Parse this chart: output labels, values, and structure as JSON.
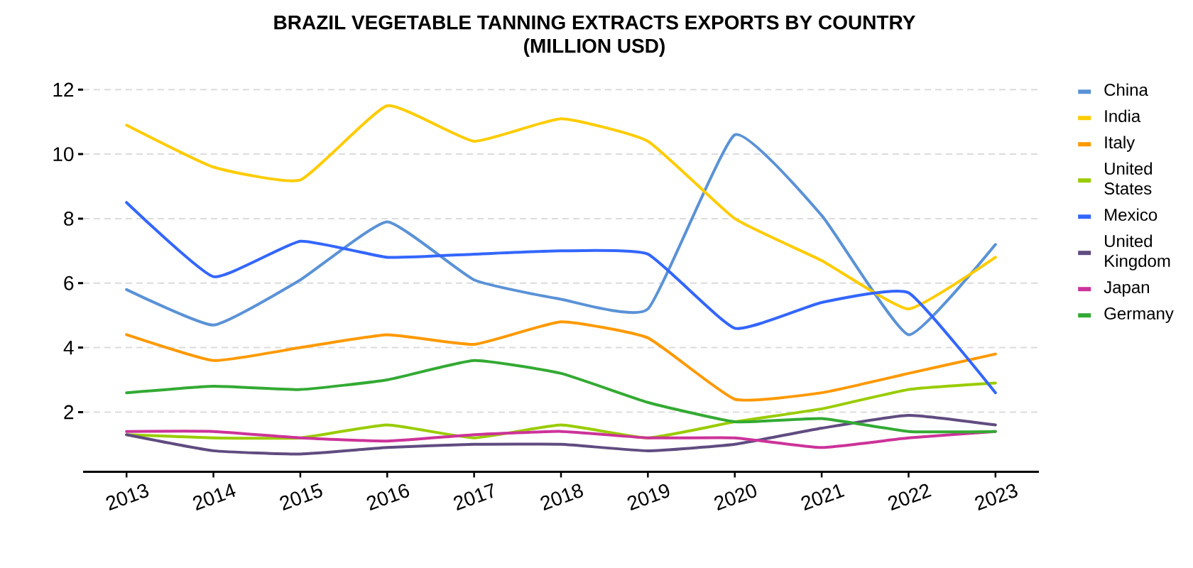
{
  "chart_data": {
    "type": "line",
    "title": "BRAZIL VEGETABLE TANNING EXTRACTS EXPORTS BY COUNTRY (MILLION USD)",
    "categories": [
      "2013",
      "2014",
      "2015",
      "2016",
      "2017",
      "2018",
      "2019",
      "2020",
      "2021",
      "2022",
      "2023"
    ],
    "series": [
      {
        "name": "China",
        "color": "#5a92d6",
        "values": [
          5.8,
          4.7,
          6.1,
          7.9,
          6.1,
          5.5,
          5.2,
          10.6,
          8.1,
          4.4,
          7.2
        ]
      },
      {
        "name": "India",
        "color": "#ffcc00",
        "values": [
          10.9,
          9.6,
          9.2,
          11.5,
          10.4,
          11.1,
          10.4,
          8.0,
          6.7,
          5.2,
          6.8
        ]
      },
      {
        "name": "Italy",
        "color": "#ff9900",
        "values": [
          4.4,
          3.6,
          4.0,
          4.4,
          4.1,
          4.8,
          4.3,
          2.4,
          2.6,
          3.2,
          3.8
        ]
      },
      {
        "name": "United States",
        "color": "#99cc00",
        "values": [
          1.3,
          1.2,
          1.2,
          1.6,
          1.2,
          1.6,
          1.2,
          1.7,
          2.1,
          2.7,
          2.9
        ]
      },
      {
        "name": "Mexico",
        "color": "#3366ff",
        "values": [
          8.5,
          6.2,
          7.3,
          6.8,
          6.9,
          7.0,
          6.9,
          4.6,
          5.4,
          5.7,
          2.6
        ]
      },
      {
        "name": "United Kingdom",
        "color": "#604c80",
        "values": [
          1.3,
          0.8,
          0.7,
          0.9,
          1.0,
          1.0,
          0.8,
          1.0,
          1.5,
          1.9,
          1.6
        ]
      },
      {
        "name": "Japan",
        "color": "#cc3399",
        "values": [
          1.4,
          1.4,
          1.2,
          1.1,
          1.3,
          1.4,
          1.2,
          1.2,
          0.9,
          1.2,
          1.4
        ]
      },
      {
        "name": "Germany",
        "color": "#33aa33",
        "values": [
          2.6,
          2.8,
          2.7,
          3.0,
          3.6,
          3.2,
          2.3,
          1.7,
          1.8,
          1.4,
          1.4
        ]
      }
    ],
    "ylim": [
      0.15,
      12
    ],
    "yticks": [
      2,
      4,
      6,
      8,
      10,
      12
    ],
    "grid": "y",
    "legend": "right"
  }
}
